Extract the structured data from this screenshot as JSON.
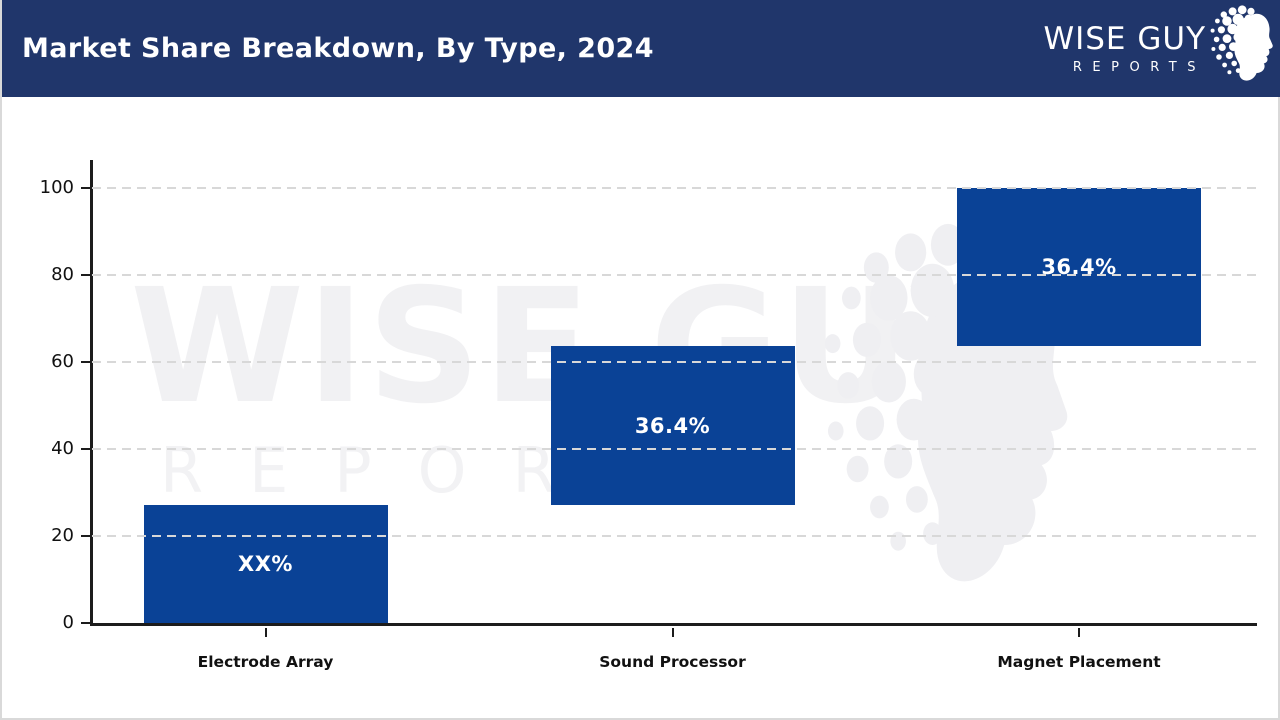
{
  "header": {
    "title": "Market Share Breakdown, By Type, 2024",
    "logo": {
      "line1": "WISE GUY",
      "line2": "REPORTS"
    }
  },
  "watermark": {
    "line1": "WISE GUY",
    "line2": "REPORTS"
  },
  "chart_data": {
    "type": "bar",
    "subtype": "floating-waterfall",
    "title": "Market Share Breakdown, By Type, 2024",
    "categories": [
      "Electrode Array",
      "Sound Processor",
      "Magnet Placement"
    ],
    "series": [
      {
        "name": "Market Share (%)",
        "segments": [
          {
            "category": "Electrode Array",
            "base": 0,
            "value": 27.2,
            "label": "XX%"
          },
          {
            "category": "Sound Processor",
            "base": 27.2,
            "value": 36.4,
            "label": "36.4%"
          },
          {
            "category": "Magnet Placement",
            "base": 63.6,
            "value": 36.4,
            "label": "36.4%"
          }
        ]
      }
    ],
    "ylim": [
      0,
      100
    ],
    "yticks": [
      0,
      20,
      40,
      60,
      80,
      100
    ],
    "xlabel": "",
    "ylabel": "",
    "grid": {
      "horizontal": true,
      "style": "dashed",
      "drawn_above_bars": true
    },
    "legend": "none"
  },
  "colors": {
    "header_bg": "#20366B",
    "bar": "#0A4296",
    "bar_label": "#ffffff",
    "grid": "#d8d8d8",
    "axis": "#1c1c1c",
    "watermark": "#f1f1f3",
    "card_border": "#d9d9d9"
  }
}
